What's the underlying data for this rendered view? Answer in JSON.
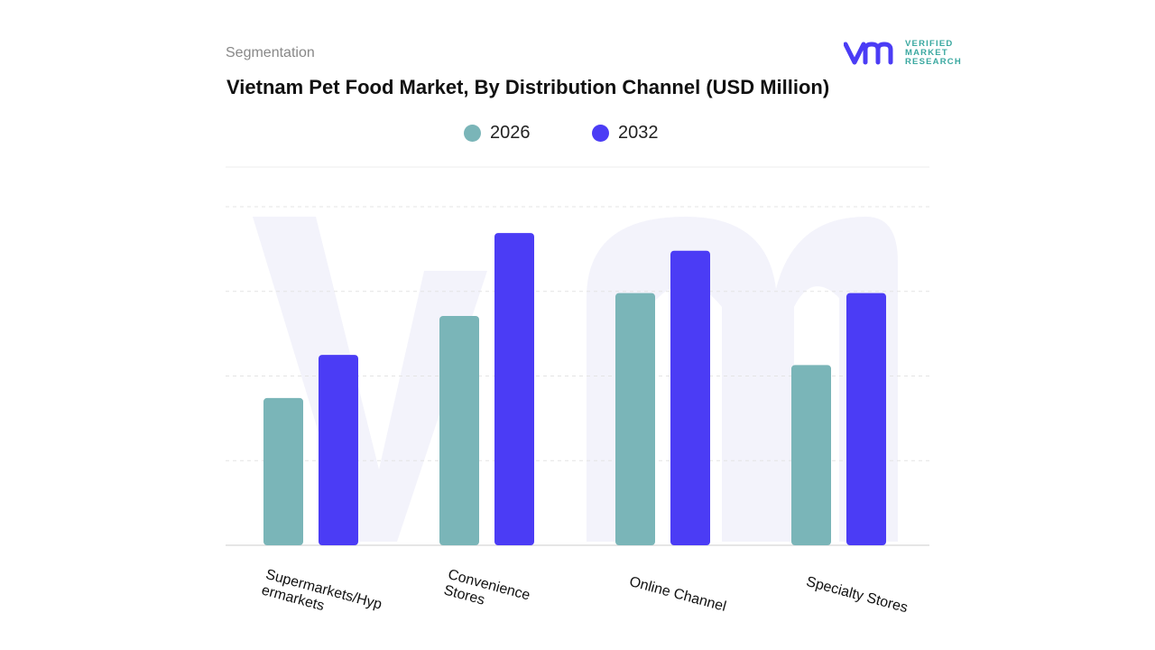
{
  "header": {
    "segment_label": "Segmentation",
    "title": "Vietnam Pet Food Market, By Distribution Channel (USD Million)"
  },
  "logo": {
    "text": "VERIFIED MARKET RESEARCH",
    "line1": "VERIFIED",
    "line2": "MARKET",
    "line3": "RESEARCH"
  },
  "chart_data": {
    "type": "bar",
    "title": "Vietnam Pet Food Market, By Distribution Channel (USD Million)",
    "categories": [
      "Supermarkets/Hypermarkets",
      "Convenience Stores",
      "Online Channel",
      "Specialty Stores"
    ],
    "category_labels": [
      "Supermarkets/Hyp\nermarkets",
      "Convenience\nStores",
      "Online Channel",
      "Specialty Stores"
    ],
    "series": [
      {
        "name": "2026",
        "color": "#7ab5b8",
        "values": [
          1.74,
          2.71,
          2.98,
          2.13
        ]
      },
      {
        "name": "2032",
        "color": "#4b3cf5",
        "values": [
          2.25,
          3.69,
          3.48,
          2.98
        ]
      }
    ],
    "ylim": [
      0,
      4
    ],
    "grid": true,
    "y_tick_labels_shown": false,
    "legend_placement": "top-center"
  }
}
